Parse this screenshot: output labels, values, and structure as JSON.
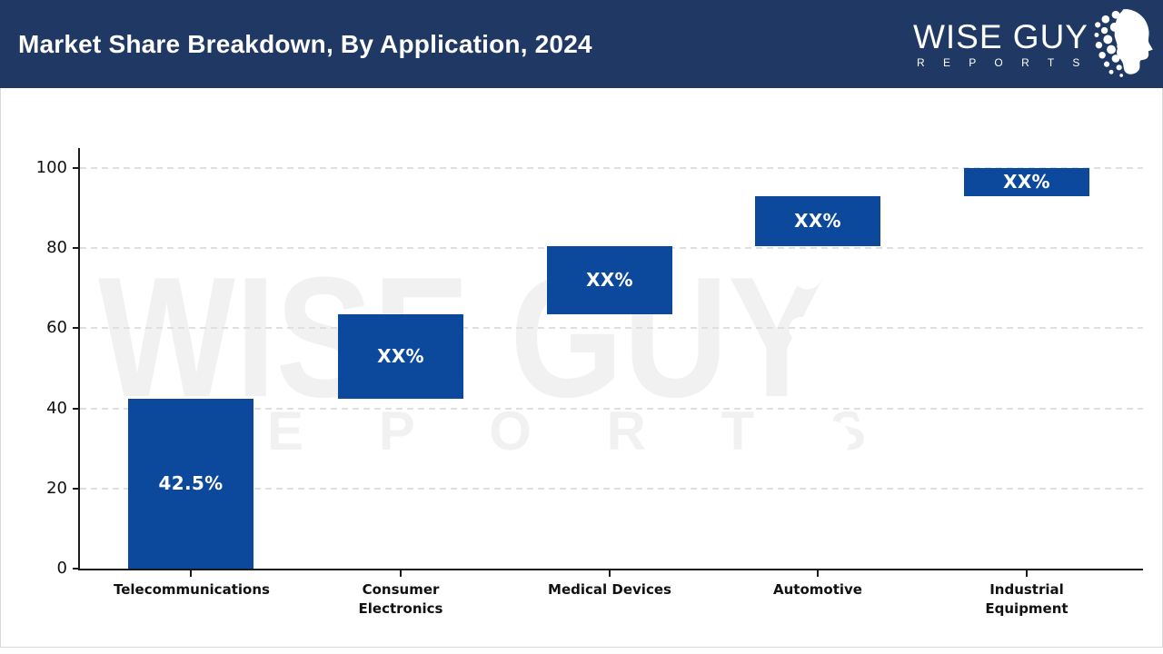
{
  "header": {
    "title": "Market Share Breakdown, By Application, 2024",
    "logo": {
      "line1": "WISE GUY",
      "line2": "R E P O R T S"
    }
  },
  "watermark": {
    "line1": "WISE GUY",
    "line2": "R E P O R T S"
  },
  "chart_data": {
    "type": "bar",
    "subtype": "waterfall",
    "title": "Market Share Breakdown, By Application, 2024",
    "categories": [
      "Telecommunications",
      "Consumer Electronics",
      "Medical Devices",
      "Automotive",
      "Industrial Equipment"
    ],
    "category_lines": [
      [
        "Telecommunications"
      ],
      [
        "Consumer",
        "Electronics"
      ],
      [
        "Medical Devices"
      ],
      [
        "Automotive"
      ],
      [
        "Industrial",
        "Equipment"
      ]
    ],
    "segments": [
      {
        "category": "Telecommunications",
        "start": 0,
        "end": 42.5,
        "label": "42.5%"
      },
      {
        "category": "Consumer Electronics",
        "start": 42.5,
        "end": 63.5,
        "label": "XX%"
      },
      {
        "category": "Medical Devices",
        "start": 63.5,
        "end": 80.5,
        "label": "XX%"
      },
      {
        "category": "Automotive",
        "start": 80.5,
        "end": 93,
        "label": "XX%"
      },
      {
        "category": "Industrial Equipment",
        "start": 93,
        "end": 100,
        "label": "XX%"
      }
    ],
    "xlabel": "",
    "ylabel": "",
    "ylim": [
      0,
      105
    ],
    "yticks": [
      0,
      20,
      40,
      60,
      80,
      100
    ],
    "grid": "horizontal-dashed",
    "legend": "none",
    "colors": {
      "bar": "#0c499c",
      "bar_label": "#ffffff",
      "grid": "#e0e0e0",
      "axis": "#1a1a1a",
      "header_bg": "#1f3864",
      "watermark": "#f1f1f1"
    }
  }
}
